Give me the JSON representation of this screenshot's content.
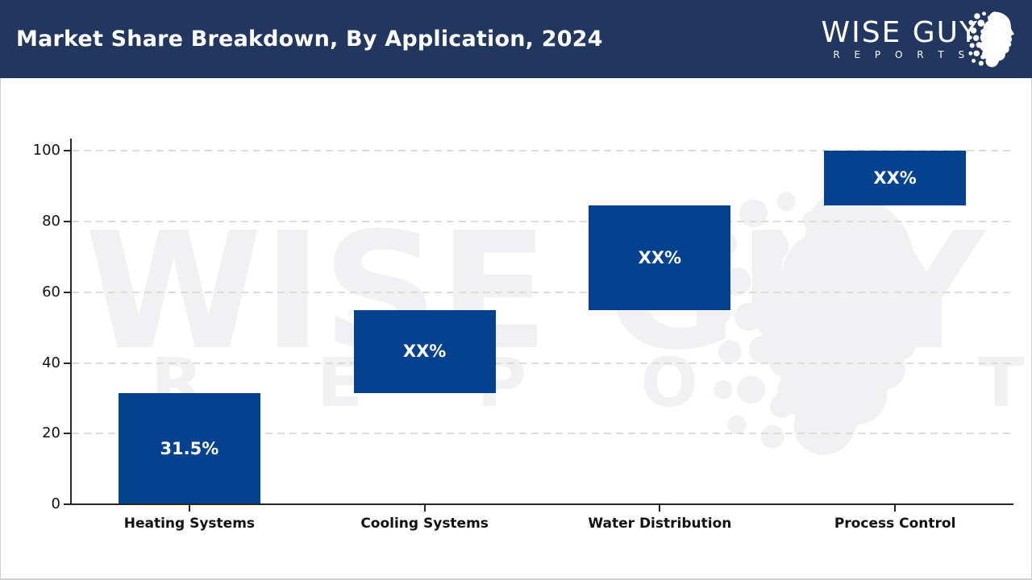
{
  "header": {
    "title": "Market Share Breakdown, By Application, 2024",
    "logo": {
      "line1": "WISE GUY",
      "line2": "R E P O R T S"
    }
  },
  "watermark": {
    "line1": "WISE GUY",
    "line2": "R E P O R T S"
  },
  "colors": {
    "header_bg": "#223760",
    "header_text": "#ffffff",
    "bar_fill": "#04428f",
    "bar_label": "#ffffff",
    "gridline": "#dcdcdc",
    "axis": "#262626",
    "tick_label": "#111111",
    "watermark": "#f1f1f4",
    "card_border": "#cccccc"
  },
  "chart_data": {
    "type": "bar",
    "subtype": "floating-waterfall-columns",
    "title": "Market Share Breakdown, By Application, 2024",
    "xlabel": "",
    "ylabel": "",
    "categories": [
      "Heating Systems",
      "Cooling Systems",
      "Water Distribution",
      "Process Control"
    ],
    "bars": [
      {
        "category": "Heating Systems",
        "start": 0,
        "end": 31.5,
        "label": "31.5%"
      },
      {
        "category": "Cooling Systems",
        "start": 31.5,
        "end": 55,
        "label": "XX%"
      },
      {
        "category": "Water Distribution",
        "start": 55,
        "end": 84.5,
        "label": "XX%"
      },
      {
        "category": "Process Control",
        "start": 84.5,
        "end": 100,
        "label": "XX%"
      }
    ],
    "yticks": [
      0,
      20,
      40,
      60,
      80,
      100
    ],
    "ylim": [
      0,
      103.5
    ],
    "grid": "horizontal-dashed",
    "legend": "none",
    "bar_color": "#04428f"
  }
}
